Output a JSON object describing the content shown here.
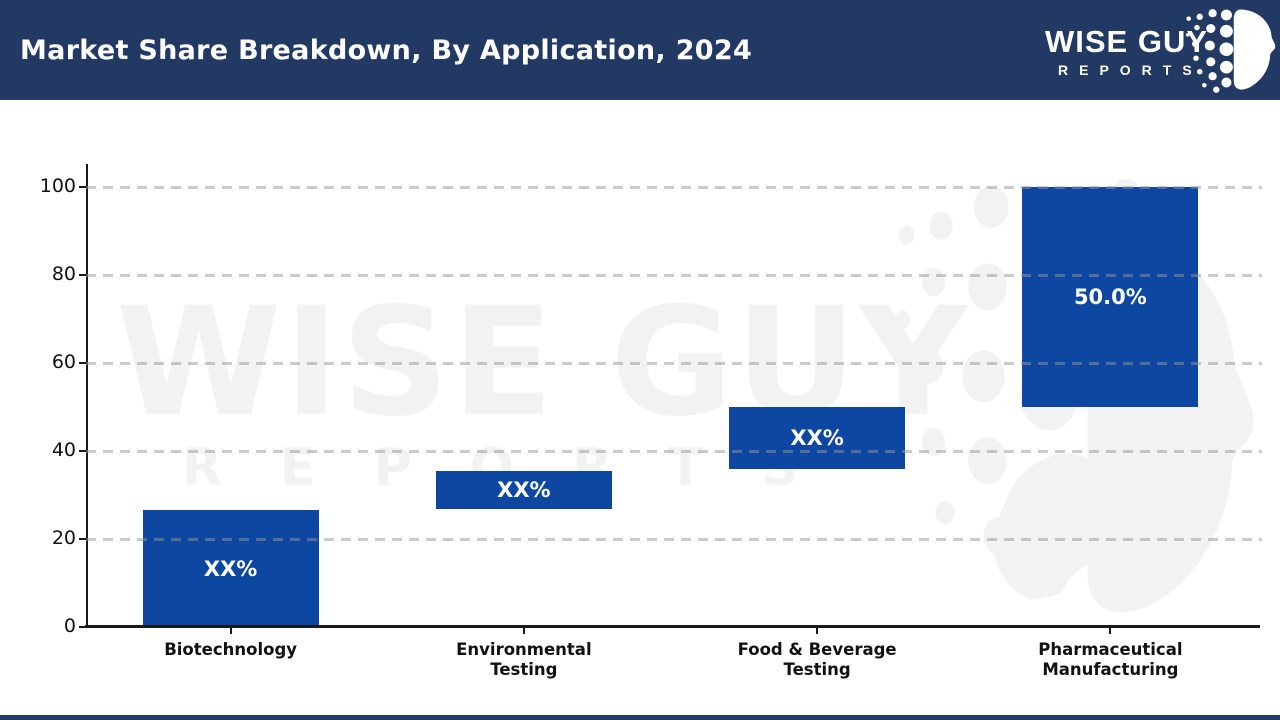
{
  "header": {
    "title": "Market Share Breakdown, By Application, 2024",
    "brand": {
      "name_top": "WISE GUY",
      "name_bottom": "REPORTS"
    }
  },
  "watermark": {
    "text_top": "WISE GUY",
    "text_bottom": "REPORTS"
  },
  "chart_data": {
    "type": "bar",
    "subtype": "floating-waterfall",
    "title": "Market Share Breakdown, By Application, 2024",
    "xlabel": "",
    "ylabel": "",
    "ylim": [
      0,
      100
    ],
    "yticks": [
      0,
      20,
      40,
      60,
      80,
      100
    ],
    "grid": "horizontal-dashed-over-bars",
    "legend": "none",
    "bar_color": "#0d47a1",
    "bars": [
      {
        "category_lines": [
          "Biotechnology"
        ],
        "base": 0,
        "top": 26.5,
        "value_label": "XX%"
      },
      {
        "category_lines": [
          "Environmental",
          "Testing"
        ],
        "base": 26.8,
        "top": 35.5,
        "value_label": "XX%"
      },
      {
        "category_lines": [
          "Food & Beverage",
          "Testing"
        ],
        "base": 35.8,
        "top": 50.0,
        "value_label": "XX%"
      },
      {
        "category_lines": [
          "Pharmaceutical",
          "Manufacturing"
        ],
        "base": 50.0,
        "top": 100.0,
        "value_label": "50.0%"
      }
    ]
  },
  "colors": {
    "header_bg": "#223A63",
    "bar_blue": "#0d47a1",
    "gridline": "#d3d3d3",
    "axis": "#1a1a1a",
    "watermark": "#f2f2f2",
    "text_dark": "#111111",
    "text_light": "#ffffff"
  }
}
